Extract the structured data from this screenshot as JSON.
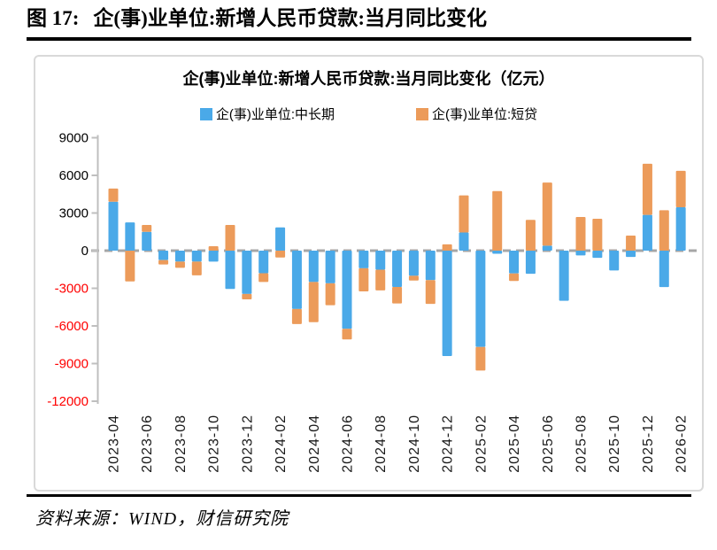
{
  "header": {
    "figure_label": "图 17:",
    "title": "企(事)业单位:新增人民币贷款:当月同比变化"
  },
  "chart": {
    "title": "企(事)业单位:新增人民币贷款:当月同比变化（亿元）",
    "legend": [
      {
        "label": "企(事)业单位:中长期",
        "color": "#4aa9e8"
      },
      {
        "label": "企(事)业单位:短贷",
        "color": "#ec9b5a"
      }
    ]
  },
  "chart_data": {
    "type": "bar",
    "stacked": true,
    "title": "企(事)业单位:新增人民币贷款:当月同比变化（亿元）",
    "unit": "亿元",
    "grid": false,
    "legend_position": "top",
    "ylim": [
      -12000,
      9000
    ],
    "y_ticks": [
      9000,
      6000,
      3000,
      0,
      -3000,
      -6000,
      -9000,
      -12000
    ],
    "y_tick_colors": {
      "positive": "#000000",
      "negative": "#ff0000"
    },
    "axis_color": "#bfbfbf",
    "zero_line_color": "#a6a6a6",
    "x_label_color": "#1a1a1a",
    "x_tick_labels": [
      "2023-04",
      "2023-06",
      "2023-08",
      "2023-10",
      "2023-12",
      "2024-02",
      "2024-04",
      "2024-06",
      "2024-08",
      "2024-10",
      "2024-12",
      "2025-02",
      "2025-04",
      "2025-06",
      "2025-08",
      "2025-10",
      "2025-12",
      "2026-02"
    ],
    "categories": [
      "2023-04",
      "2023-05",
      "2023-06",
      "2023-07",
      "2023-08",
      "2023-09",
      "2023-10",
      "2023-11",
      "2023-12",
      "2024-01",
      "2024-02",
      "2024-03",
      "2024-04",
      "2024-05",
      "2024-06",
      "2024-07",
      "2024-08",
      "2024-09",
      "2024-10",
      "2024-11",
      "2024-12",
      "2025-01",
      "2025-02",
      "2025-03",
      "2025-04",
      "2025-05",
      "2025-06",
      "2025-07",
      "2025-08",
      "2025-09",
      "2025-10",
      "2025-11",
      "2025-12",
      "2026-01",
      "2026-02"
    ],
    "series": [
      {
        "name": "企(事)业单位:中长期",
        "key": "zhongchangqi",
        "color": "#4aa9e8",
        "values": [
          3900,
          2250,
          1500,
          -750,
          -870,
          -870,
          -870,
          -3050,
          -3450,
          -1800,
          1850,
          -4650,
          -2500,
          -2600,
          -6230,
          -1400,
          -1520,
          -2890,
          -2000,
          -2350,
          -8400,
          1450,
          -7680,
          -250,
          -1820,
          -1840,
          400,
          -4000,
          -380,
          -570,
          -1580,
          -500,
          2850,
          -2900,
          3460
        ]
      },
      {
        "name": "企(事)业单位:短贷",
        "key": "duandai",
        "color": "#ec9b5a",
        "values": [
          1050,
          -2450,
          550,
          -350,
          -500,
          -1100,
          350,
          2050,
          -430,
          -700,
          -550,
          -1200,
          -3200,
          -1750,
          -850,
          -1850,
          -1650,
          -1320,
          -380,
          -1890,
          500,
          2950,
          -1880,
          4750,
          -600,
          2450,
          5030,
          0,
          2680,
          2540,
          0,
          1200,
          4080,
          3220,
          2900
        ]
      }
    ]
  },
  "footer": {
    "source": "资料来源：WIND，财信研究院"
  }
}
